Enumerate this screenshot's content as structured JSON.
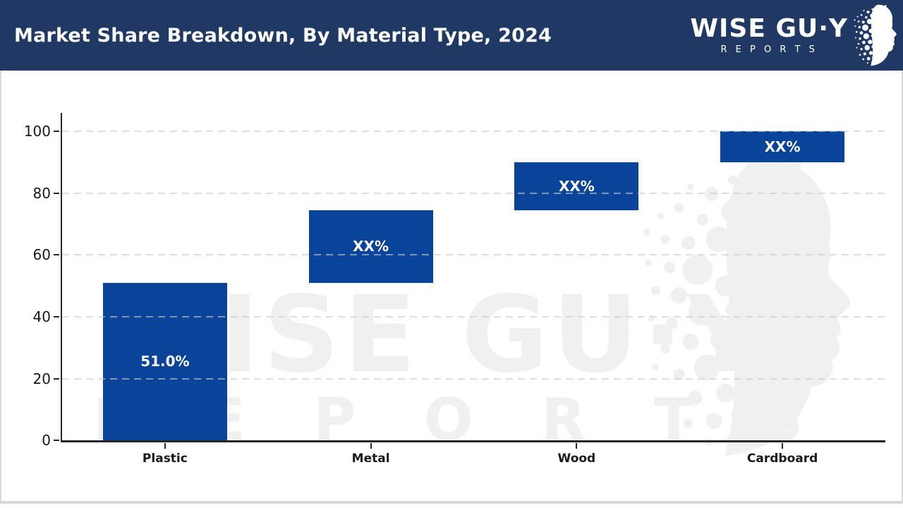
{
  "header": {
    "title": "Market Share Breakdown, By Material Type, 2024",
    "logo": {
      "line1": "WISE GU·Y",
      "line2": "R E P O R T S"
    }
  },
  "watermark": {
    "line1": "WISE GU·Y",
    "line2": "R E P O R T S"
  },
  "colors": {
    "header_bg": "#1f3864",
    "bar": "#09439a",
    "axis": "#262626",
    "grid_dash": "#cacaca",
    "bar_label_text": "#ffffff",
    "watermark": "#f0f0f0",
    "card_border": "#d9d9d9"
  },
  "chart_data": {
    "type": "bar",
    "subtype": "waterfall",
    "title": "Market Share Breakdown, By Material Type, 2024",
    "categories": [
      "Plastic",
      "Metal",
      "Wood",
      "Cardboard"
    ],
    "segments": [
      {
        "category": "Plastic",
        "start": 0,
        "end": 51.0,
        "label": "51.0%"
      },
      {
        "category": "Metal",
        "start": 51.0,
        "end": 74.5,
        "label": "XX%"
      },
      {
        "category": "Wood",
        "start": 74.5,
        "end": 90.0,
        "label": "XX%"
      },
      {
        "category": "Cardboard",
        "start": 90.0,
        "end": 100.0,
        "label": "XX%"
      }
    ],
    "yticks": [
      0,
      20,
      40,
      60,
      80,
      100
    ],
    "ylim": [
      0,
      106
    ],
    "xlabel": "",
    "ylabel": "",
    "grid": "horizontal-dashed",
    "legend": "none"
  }
}
